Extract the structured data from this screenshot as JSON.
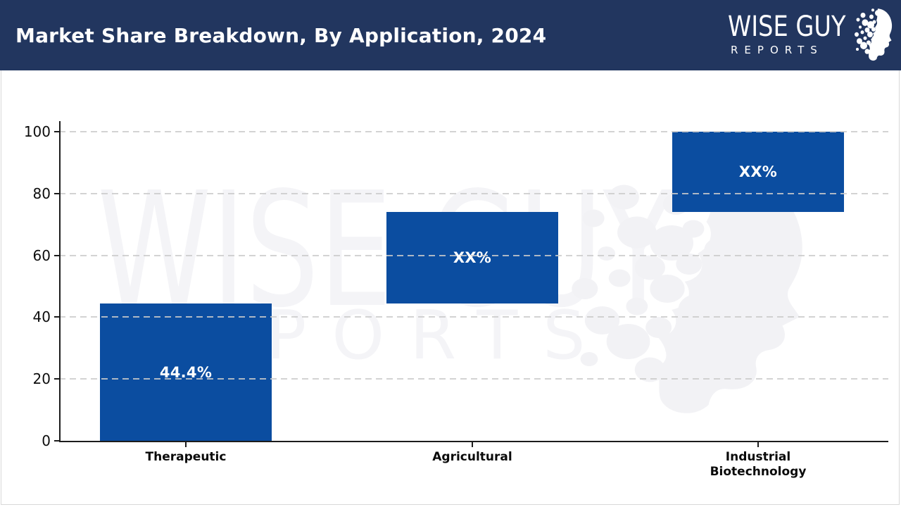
{
  "header": {
    "title": "Market Share Breakdown, By Application, 2024",
    "logo": {
      "line1": "WISE GUY",
      "line2": "REPORTS"
    },
    "bg_color": "#22365f"
  },
  "watermark": {
    "line1": "WISE GUY",
    "line2": "REPORTS"
  },
  "chart_data": {
    "type": "bar",
    "subtype": "floating-waterfall",
    "title": "Market Share Breakdown, By Application, 2024",
    "categories": [
      "Therapeutic",
      "Agricultural",
      "Industrial\nBiotechnology"
    ],
    "segments": [
      {
        "category": "Therapeutic",
        "label": "44.4%",
        "start": 0,
        "end": 44.4
      },
      {
        "category": "Agricultural",
        "label": "XX%",
        "start": 44.4,
        "end": 74
      },
      {
        "category": "Industrial Biotechnology",
        "label": "XX%",
        "start": 74,
        "end": 100
      }
    ],
    "xlabel": "",
    "ylabel": "",
    "ylim": [
      0,
      100
    ],
    "yticks": [
      0,
      20,
      40,
      60,
      80,
      100
    ],
    "grid": "horizontal-dashed",
    "legend": "none",
    "bar_color": "#0b4da0",
    "axis_color": "#1c1c1c",
    "grid_color": "#d4d4d4",
    "label_color": "#ffffff"
  }
}
